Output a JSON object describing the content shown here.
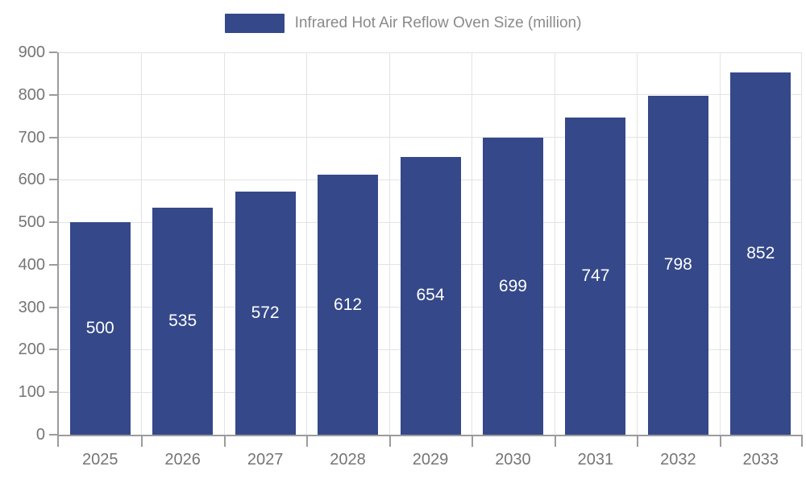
{
  "chart_data": {
    "type": "bar",
    "title": "Infrared Hot Air Reflow Oven Size (million)",
    "categories": [
      "2025",
      "2026",
      "2027",
      "2028",
      "2029",
      "2030",
      "2031",
      "2032",
      "2033"
    ],
    "series": [
      {
        "name": "Infrared Hot Air Reflow Oven Size (million)",
        "values": [
          500,
          535,
          572,
          612,
          654,
          699,
          747,
          798,
          852
        ]
      }
    ],
    "xlabel": "",
    "ylabel": "",
    "ylim": [
      0,
      900
    ],
    "yticks": [
      0,
      100,
      200,
      300,
      400,
      500,
      600,
      700,
      800,
      900
    ],
    "grid": "on",
    "legend_position": "top-center",
    "colors": {
      "bar": "#35488a",
      "bar_value_label": "#ffffff",
      "grid_line": "#e3e3e3",
      "axis_line": "#9b9b9b",
      "tick_label": "#757575",
      "legend_text": "#8a8a8a"
    }
  }
}
